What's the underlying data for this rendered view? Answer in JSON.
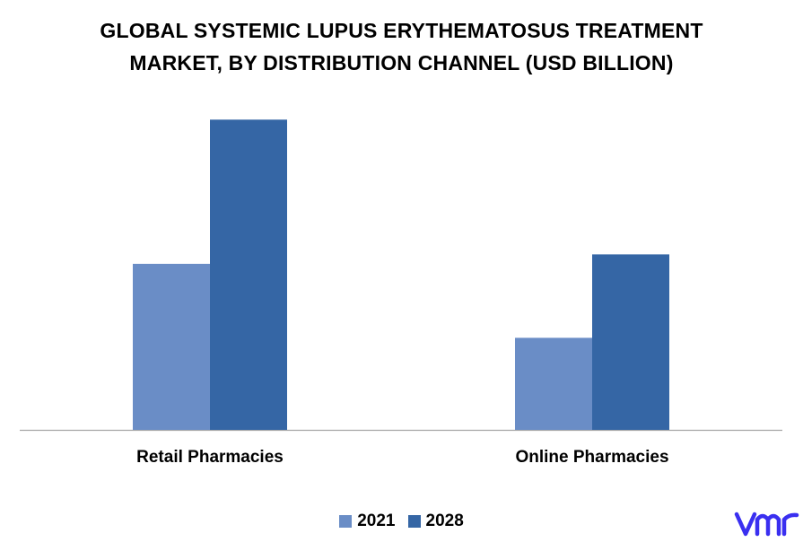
{
  "title": {
    "line1": "GLOBAL SYSTEMIC LUPUS ERYTHEMATOSUS TREATMENT",
    "line2": "MARKET, BY DISTRIBUTION CHANNEL (USD BILLION)"
  },
  "logo": {
    "text": "vmr",
    "color": "#3a2ff0"
  },
  "colors": {
    "series_2021": "#6a8dc6",
    "series_2028": "#3566a5",
    "axis": "#a6a6a6"
  },
  "chart_data": {
    "type": "bar",
    "title": "GLOBAL SYSTEMIC LUPUS ERYTHEMATOSUS TREATMENT MARKET, BY DISTRIBUTION CHANNEL (USD BILLION)",
    "categories": [
      "Retail Pharmacies",
      "Online Pharmacies"
    ],
    "series": [
      {
        "name": "2021",
        "values": [
          1.75,
          0.97
        ]
      },
      {
        "name": "2028",
        "values": [
          3.27,
          1.85
        ]
      }
    ],
    "xlabel": "",
    "ylabel": "",
    "ylim": [
      0,
      3.5
    ],
    "grid": false,
    "legend": "bottom"
  }
}
